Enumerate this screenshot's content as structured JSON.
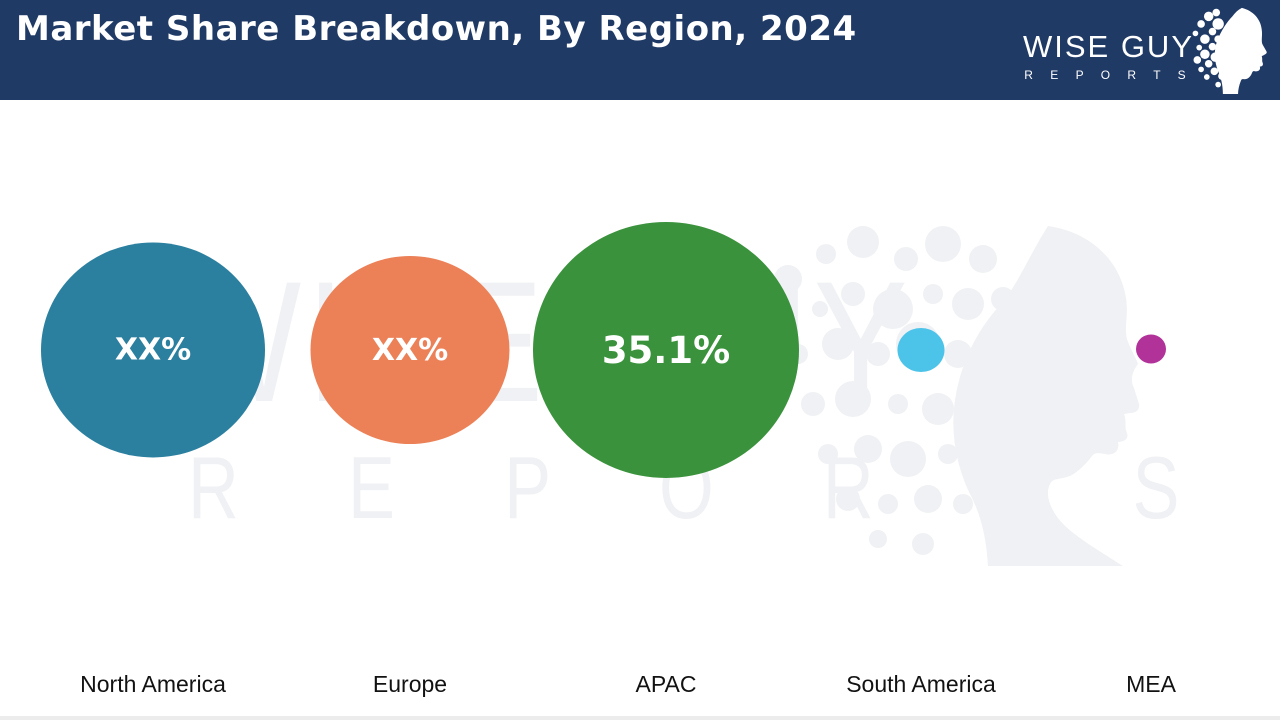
{
  "header": {
    "title": "Market Share Breakdown, By Region, 2024",
    "logo": {
      "name": "WISE GUY",
      "sub": "R E P O R T S"
    }
  },
  "watermark": {
    "name": "WISE GUY",
    "sub": "R E P O R T S"
  },
  "colors": {
    "header_bg": "#203a66",
    "watermark": "#f0f1f4",
    "label_text": "#121212"
  },
  "chart_data": {
    "type": "bubble",
    "title": "Market Share Breakdown, By Region, 2024",
    "year": "2024",
    "categories": [
      "North America",
      "Europe",
      "APAC",
      "South America",
      "MEA"
    ],
    "series": [
      {
        "name": "Market Share",
        "points": [
          {
            "label": "North America",
            "value_label": "XX%",
            "value": null,
            "color": "#2b7f9f",
            "d": [
              224,
              215
            ]
          },
          {
            "label": "Europe",
            "value_label": "XX%",
            "value": null,
            "color": "#ec8158",
            "d": [
              199,
              188
            ]
          },
          {
            "label": "APAC",
            "value_label": "35.1%",
            "value": 35.1,
            "color": "#3a923c",
            "d": [
              266,
              256
            ]
          },
          {
            "label": "South America",
            "value_label": "",
            "value": null,
            "color": "#4cc3e9",
            "d": [
              47,
              44
            ]
          },
          {
            "label": "MEA",
            "value_label": "",
            "value": null,
            "color": "#b13299",
            "d": [
              30,
              29
            ]
          }
        ]
      }
    ],
    "legend": "none",
    "axes": "none"
  }
}
